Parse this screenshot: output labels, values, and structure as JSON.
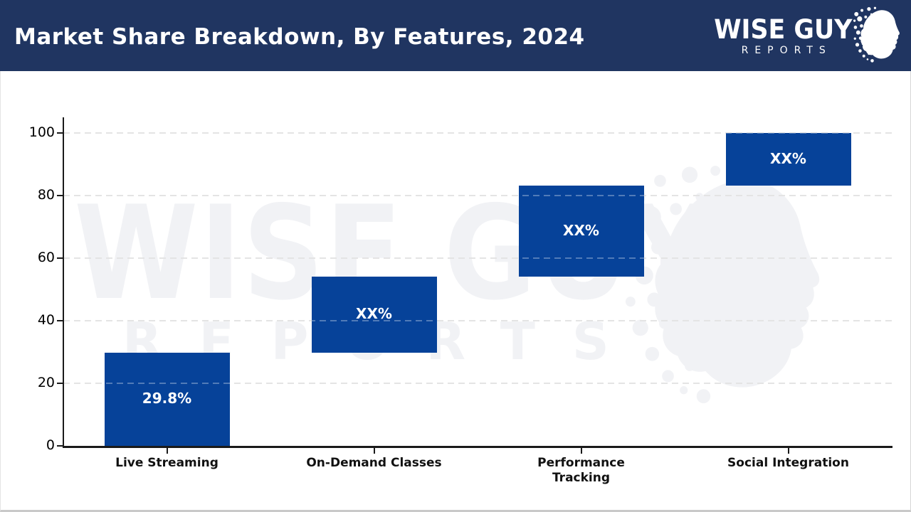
{
  "header": {
    "title": "Market Share Breakdown, By Features, 2024",
    "bg_color": "#203561",
    "logo": {
      "name": "WISE GUY",
      "sub": "REPORTS"
    }
  },
  "watermark": {
    "line1": "WISE GUY",
    "line2": "REPORTS"
  },
  "chart_data": {
    "type": "bar",
    "subtype": "waterfall",
    "title": "Market Share Breakdown, By Features, 2024",
    "categories": [
      "Live Streaming",
      "On-Demand Classes",
      "Performance\nTracking",
      "Social Integration"
    ],
    "series": [
      {
        "name": "Market share (%)",
        "segments": [
          [
            0,
            29.8
          ],
          [
            29.8,
            54.2
          ],
          [
            54.2,
            83.2
          ],
          [
            83.2,
            100
          ]
        ],
        "labels": [
          "29.8%",
          "XX%",
          "XX%",
          "XX%"
        ]
      }
    ],
    "ylim": [
      0,
      105
    ],
    "yticks": [
      0,
      20,
      40,
      60,
      80,
      100
    ],
    "grid": "horizontal-dashed",
    "legend": "none",
    "bar_color": "#064299",
    "grid_color": "#d9d9d9",
    "axis_color": "#1a1a1a",
    "value_label_color": "#ffffff",
    "watermark_color": "#f1f2f5"
  }
}
